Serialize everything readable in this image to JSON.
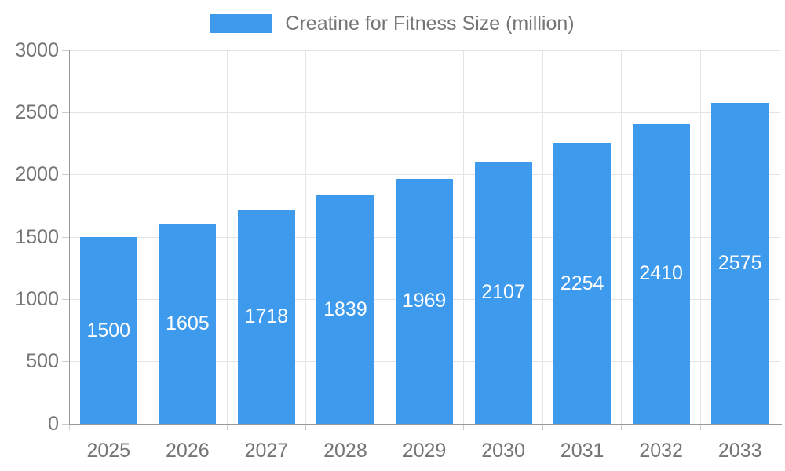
{
  "legend": {
    "label": "Creatine for Fitness Size (million)"
  },
  "colors": {
    "bar": "#3d9aec",
    "grid": "#e4e4e4",
    "axis": "#999999",
    "tick": "#cccccc",
    "text": "#757575",
    "value_label": "#ffffff",
    "background": "#ffffff"
  },
  "chart_data": {
    "type": "bar",
    "title": "Creatine for Fitness Size (million)",
    "categories": [
      "2025",
      "2026",
      "2027",
      "2028",
      "2029",
      "2030",
      "2031",
      "2032",
      "2033"
    ],
    "values": [
      1500,
      1605,
      1718,
      1839,
      1969,
      2107,
      2254,
      2410,
      2575
    ],
    "xlabel": "",
    "ylabel": "",
    "ylim": [
      0,
      3000
    ],
    "yticks": [
      0,
      500,
      1000,
      1500,
      2000,
      2500,
      3000
    ],
    "grid": true,
    "legend_position": "top-center",
    "legend_entries": [
      "Creatine for Fitness Size (million)"
    ],
    "value_labels": "inside-center"
  }
}
